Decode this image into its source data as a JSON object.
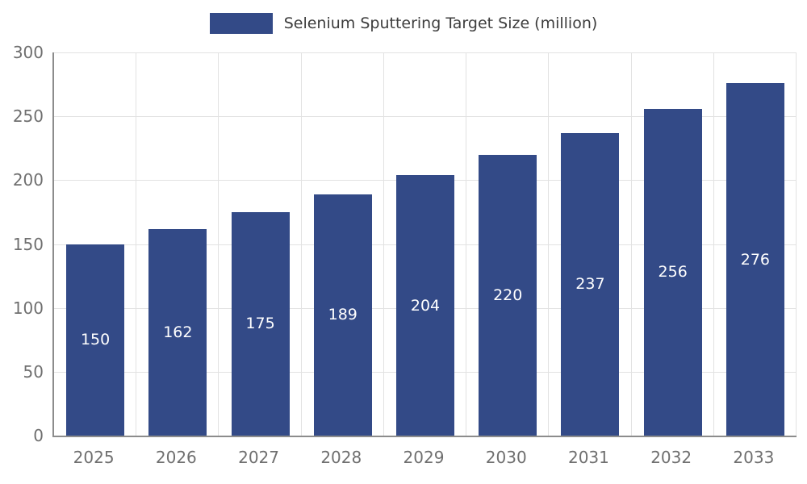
{
  "chart_data": {
    "type": "bar",
    "legend_label": "Selenium Sputtering Target Size (million)",
    "categories": [
      "2025",
      "2026",
      "2027",
      "2028",
      "2029",
      "2030",
      "2031",
      "2032",
      "2033"
    ],
    "values": [
      150,
      162,
      175,
      189,
      204,
      220,
      237,
      256,
      276
    ],
    "title": "",
    "xlabel": "",
    "ylabel": "",
    "ylim": [
      0,
      300
    ],
    "yticks": [
      0,
      50,
      100,
      150,
      200,
      250,
      300
    ],
    "grid": "on",
    "legend_position": "top-center",
    "bar_color": "#334a87",
    "value_label_color": "#ffffff",
    "tick_label_color": "#6f6f6f",
    "axis_line_color": "#8c8c8c",
    "gridline_color": "#e2e2e2",
    "background_color": "#ffffff"
  }
}
